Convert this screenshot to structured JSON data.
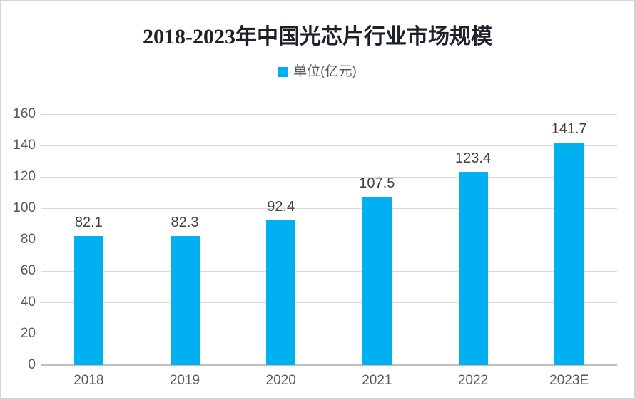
{
  "page": {
    "background": "#ffffff",
    "border_color": "#d2d4d8"
  },
  "chart_data": {
    "type": "bar",
    "title": "2018-2023年中国光芯片行业市场规模",
    "legend": {
      "label": "单位(亿元)",
      "position": "top",
      "swatch_color": "#00B0F0"
    },
    "categories": [
      "2018",
      "2019",
      "2020",
      "2021",
      "2022",
      "2023E"
    ],
    "values": [
      82.1,
      82.3,
      92.4,
      107.5,
      123.4,
      141.7
    ],
    "value_labels": [
      "82.1",
      "82.3",
      "92.4",
      "107.5",
      "123.4",
      "141.7"
    ],
    "xlabel": "",
    "ylabel": "",
    "ylim": [
      0,
      160
    ],
    "yticks": [
      0,
      20,
      40,
      60,
      80,
      100,
      120,
      140,
      160
    ],
    "grid": true,
    "legend_visible": true,
    "colors": {
      "bar": "#00B0F0",
      "gridline": "#d9d9d9",
      "axis_line": "#bfbfbf",
      "tick_label": "#595959",
      "value_label": "#404040",
      "title": "#1d2129"
    }
  }
}
